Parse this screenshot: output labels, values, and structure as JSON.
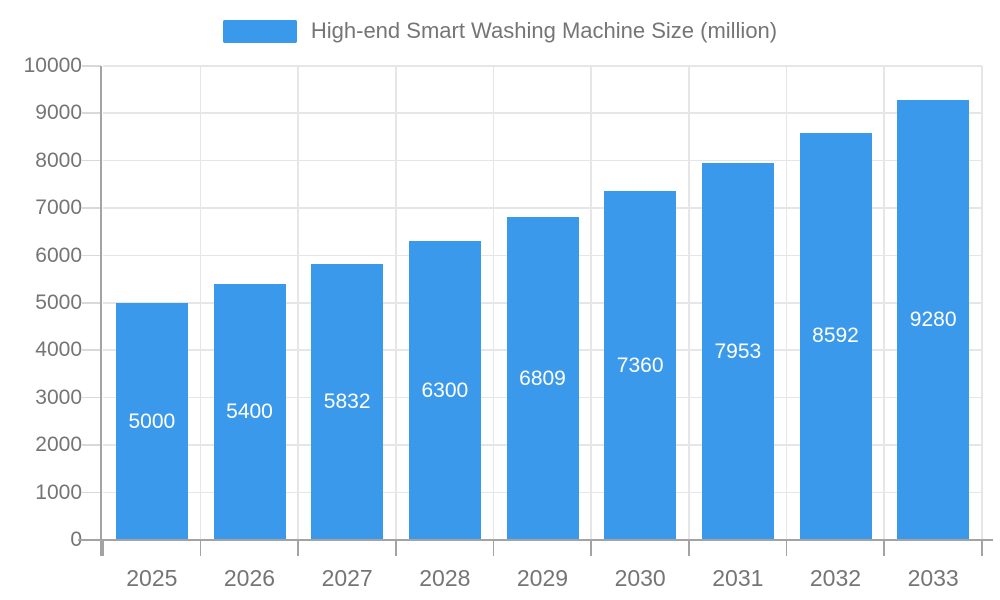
{
  "legend": {
    "label": "High-end Smart Washing Machine Size (million)"
  },
  "chart_data": {
    "type": "bar",
    "title": "High-end Smart Washing Machine Size (million)",
    "categories": [
      "2025",
      "2026",
      "2027",
      "2028",
      "2029",
      "2030",
      "2031",
      "2032",
      "2033"
    ],
    "values": [
      5000,
      5400,
      5832,
      6300,
      6809,
      7360,
      7953,
      8592,
      9280
    ],
    "xlabel": "",
    "ylabel": "",
    "ylim": [
      0,
      10000
    ],
    "yticks": [
      0,
      1000,
      2000,
      3000,
      4000,
      5000,
      6000,
      7000,
      8000,
      9000,
      10000
    ],
    "grid": true,
    "legend_position": "top-center",
    "value_labels": "inside-center",
    "colors": {
      "bar": "#3b99ec",
      "value_label": "#ffffff",
      "axis_label": "#757575",
      "gridline": "#e6e6e6",
      "axis_line": "#a3a3a3",
      "y_tick": "#d9d9d9"
    }
  }
}
